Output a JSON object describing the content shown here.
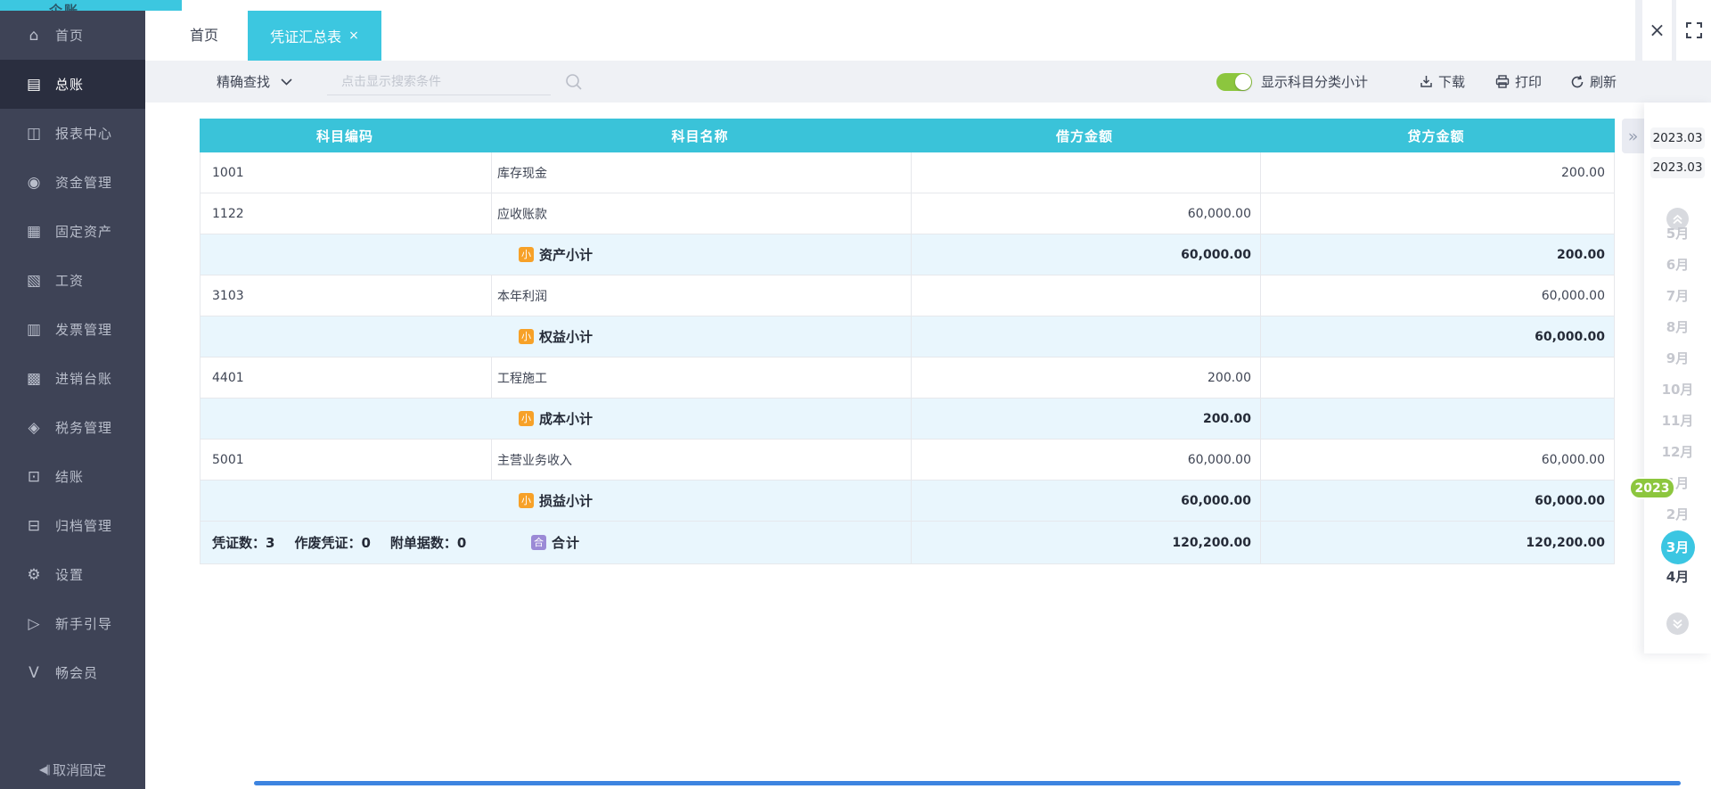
{
  "logo_text": "企账",
  "sidebar": {
    "items": [
      {
        "id": "home",
        "label": "首页",
        "icon": "home-icon",
        "active": false
      },
      {
        "id": "general-ledger",
        "label": "总账",
        "icon": "ledger-icon",
        "active": true
      },
      {
        "id": "report-center",
        "label": "报表中心",
        "icon": "report-icon",
        "active": false
      },
      {
        "id": "fund-management",
        "label": "资金管理",
        "icon": "moneybag-icon",
        "active": false
      },
      {
        "id": "fixed-assets",
        "label": "固定资产",
        "icon": "building-icon",
        "active": false
      },
      {
        "id": "payroll",
        "label": "工资",
        "icon": "payroll-icon",
        "active": false
      },
      {
        "id": "invoice-management",
        "label": "发票管理",
        "icon": "invoice-icon",
        "active": false
      },
      {
        "id": "purchase-sale-ledger",
        "label": "进销台账",
        "icon": "ledger-book-icon",
        "active": false
      },
      {
        "id": "tax-management",
        "label": "税务管理",
        "icon": "tax-icon",
        "active": false
      },
      {
        "id": "closing",
        "label": "结账",
        "icon": "closing-icon",
        "active": false
      },
      {
        "id": "archive-management",
        "label": "归档管理",
        "icon": "archive-icon",
        "active": false
      },
      {
        "id": "settings",
        "label": "设置",
        "icon": "gear-icon",
        "active": false
      },
      {
        "id": "beginner-guide",
        "label": "新手引导",
        "icon": "video-icon",
        "active": false
      },
      {
        "id": "member",
        "label": "畅会员",
        "icon": "v-member-icon",
        "active": false
      }
    ],
    "unpin_label": "取消固定"
  },
  "tabs": [
    {
      "label": "首页",
      "active": false
    },
    {
      "label": "凭证汇总表",
      "active": true,
      "close_icon": "×"
    }
  ],
  "window_controls": {
    "close": "×",
    "fullscreen_icon": "fullscreen-icon"
  },
  "toolbar": {
    "search_mode": "精确查找",
    "search_placeholder": "点击显示搜索条件",
    "toggle_label": "显示科目分类小计",
    "toggle_on": true,
    "toggle_color": "#8CC63E",
    "download_label": "下载",
    "print_label": "打印",
    "refresh_label": "刷新"
  },
  "table": {
    "headers": [
      "科目编码",
      "科目名称",
      "借方金额",
      "贷方金额"
    ],
    "rows": [
      {
        "type": "data",
        "code": "1001",
        "name": "库存现金",
        "debit": "",
        "credit": "200.00"
      },
      {
        "type": "data",
        "code": "1122",
        "name": "应收账款",
        "debit": "60,000.00",
        "credit": ""
      },
      {
        "type": "subtotal",
        "name": "资产小计",
        "debit": "60,000.00",
        "credit": "200.00"
      },
      {
        "type": "data",
        "code": "3103",
        "name": "本年利润",
        "debit": "",
        "credit": "60,000.00"
      },
      {
        "type": "subtotal",
        "name": "权益小计",
        "debit": "",
        "credit": "60,000.00"
      },
      {
        "type": "data",
        "code": "4401",
        "name": "工程施工",
        "debit": "200.00",
        "credit": ""
      },
      {
        "type": "subtotal",
        "name": "成本小计",
        "debit": "200.00",
        "credit": ""
      },
      {
        "type": "data",
        "code": "5001",
        "name": "主营业务收入",
        "debit": "60,000.00",
        "credit": "60,000.00"
      },
      {
        "type": "subtotal",
        "name": "损益小计",
        "debit": "60,000.00",
        "credit": "60,000.00"
      }
    ],
    "subtotal_icon_char": "小",
    "footer": {
      "stats": [
        "凭证数：3",
        "作废凭证：0",
        "附单据数：0"
      ],
      "total_label": "合计",
      "total_icon_char": "合",
      "debit_total": "120,200.00",
      "credit_total": "120,200.00"
    }
  },
  "date_panel": {
    "collapse_icon": "»",
    "period_start": "2023.03",
    "period_end": "2023.03",
    "year_badge": "2023",
    "months": [
      {
        "label": "5月",
        "state": "muted"
      },
      {
        "label": "6月",
        "state": "muted"
      },
      {
        "label": "7月",
        "state": "muted"
      },
      {
        "label": "8月",
        "state": "muted"
      },
      {
        "label": "9月",
        "state": "muted"
      },
      {
        "label": "10月",
        "state": "muted"
      },
      {
        "label": "11月",
        "state": "muted"
      },
      {
        "label": "12月",
        "state": "muted"
      },
      {
        "label": "1月",
        "state": "muted"
      },
      {
        "label": "2月",
        "state": "muted"
      },
      {
        "label": "3月",
        "state": "selected"
      },
      {
        "label": "4月",
        "state": "normal"
      }
    ]
  },
  "colors": {
    "accent_cyan": "#3CC7E0",
    "table_header_cyan": "#3AC3D9",
    "sidebar_bg": "#3E4356",
    "sidebar_active_bg": "#2A2E3F",
    "subtotal_row_bg": "#E9F6FD",
    "toggle_green": "#8CC63E",
    "year_badge_green": "#8CC63E",
    "scrollbar_blue": "#3D84E0",
    "subtotal_icon_orange": "#F7A128",
    "total_icon_purple": "#9B8AD6"
  }
}
